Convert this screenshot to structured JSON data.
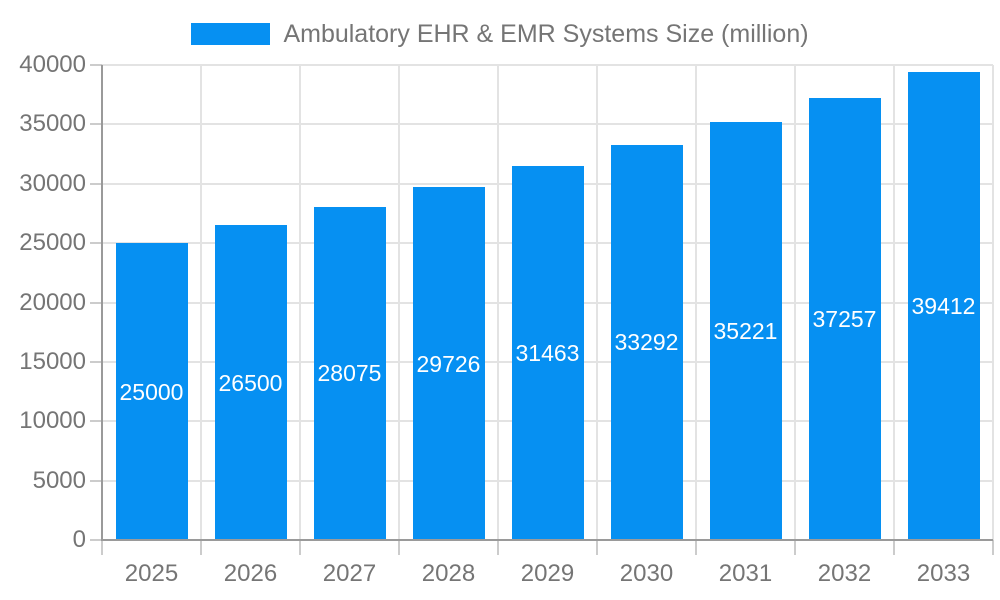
{
  "chart_data": {
    "type": "bar",
    "title": "Ambulatory EHR & EMR Systems Size (million)",
    "legend": [
      "Ambulatory EHR & EMR Systems Size (million)"
    ],
    "legend_position": "top-center",
    "categories": [
      "2025",
      "2026",
      "2027",
      "2028",
      "2029",
      "2030",
      "2031",
      "2032",
      "2033"
    ],
    "values": [
      25000,
      26500,
      28075,
      29726,
      31463,
      33292,
      35221,
      37257,
      39412
    ],
    "value_labels": [
      "25000",
      "26500",
      "28075",
      "29726",
      "31463",
      "33292",
      "35221",
      "37257",
      "39412"
    ],
    "xlabel": "",
    "ylabel": "",
    "ylim": [
      0,
      40000
    ],
    "y_ticks": [
      0,
      5000,
      10000,
      15000,
      20000,
      25000,
      30000,
      35000,
      40000
    ],
    "grid": "both",
    "colors": {
      "bar": "#0690f2",
      "axis": "#9a9a9a",
      "gridline": "#e3e3e3",
      "tick": "#cccccc",
      "tick_label": "#757575",
      "value_label": "#ffffff",
      "background": "#ffffff"
    }
  }
}
